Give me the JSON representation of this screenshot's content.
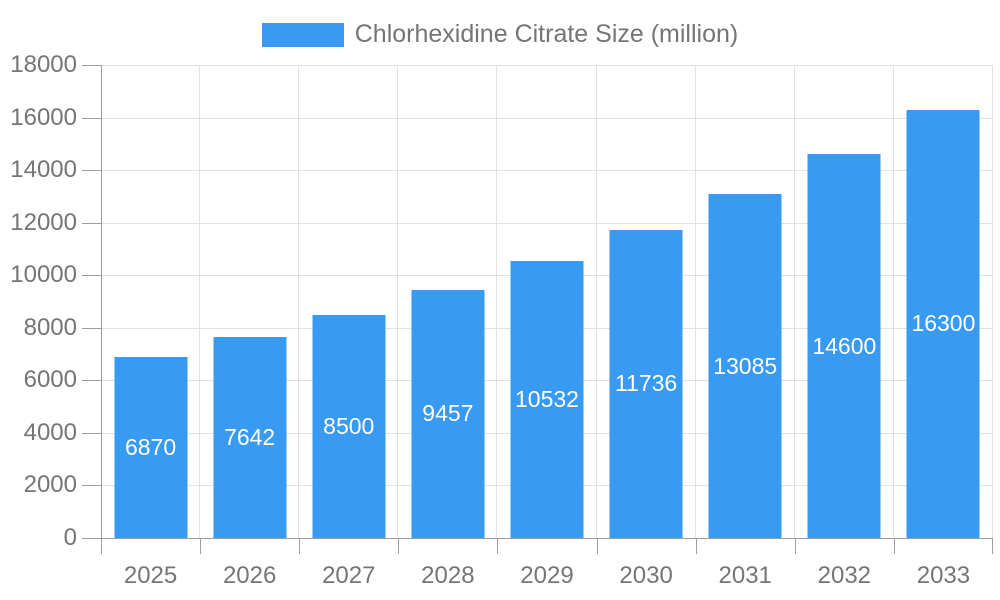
{
  "chart_data": {
    "type": "bar",
    "categories": [
      "2025",
      "2026",
      "2027",
      "2028",
      "2029",
      "2030",
      "2031",
      "2032",
      "2033"
    ],
    "series": [
      {
        "name": "Chlorhexidine Citrate Size (million)",
        "values": [
          6870,
          7642,
          8500,
          9457,
          10532,
          11736,
          13085,
          14600,
          16300
        ]
      }
    ],
    "title": "",
    "xlabel": "",
    "ylabel": "",
    "ylim": [
      0,
      18000
    ],
    "ytick_step": 2000,
    "grid": true,
    "legend_position": "top",
    "value_label_position": "inside-center",
    "colors": {
      "bar": "#389af0",
      "axis_text": "#757575",
      "grid_line": "#e2e2e2",
      "axis_line": "#9e9e9e",
      "value_label": "#ffffff",
      "background": "#ffffff"
    }
  }
}
